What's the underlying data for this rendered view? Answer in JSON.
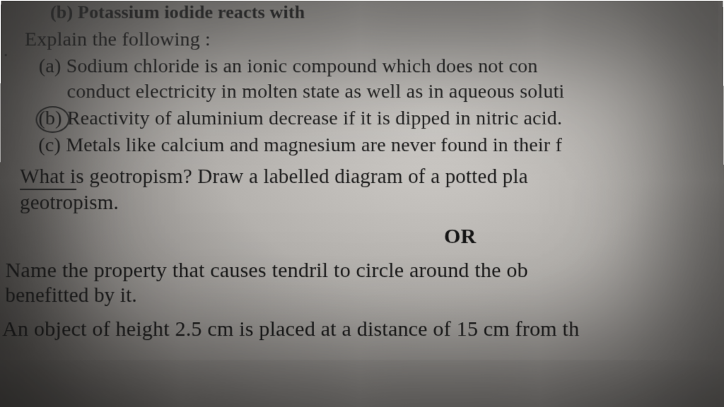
{
  "top_b": "(b) Potassium iodide reacts with",
  "explain": "Explain the following :",
  "a_line1": "(a) Sodium chloride is an ionic compound which does not con",
  "a_line2": "conduct electricity in molten state as well as in aqueous soluti",
  "b_line": "(b) Reactivity of aluminium decrease if it is dipped in nitric acid.",
  "c_line": "(c) Metals like calcium and magnesium are never found in their f",
  "what_line": "What is geotropism? Draw a labelled diagram of a potted pla",
  "geo_line": "geotropism.",
  "or": "OR",
  "name_line1": "Name the property that causes tendril to circle around the ob",
  "name_line2": "benefitted by it.",
  "obj_line": "An object of height 2.5 cm is placed at a distance of 15 cm from th",
  "bullet": "."
}
